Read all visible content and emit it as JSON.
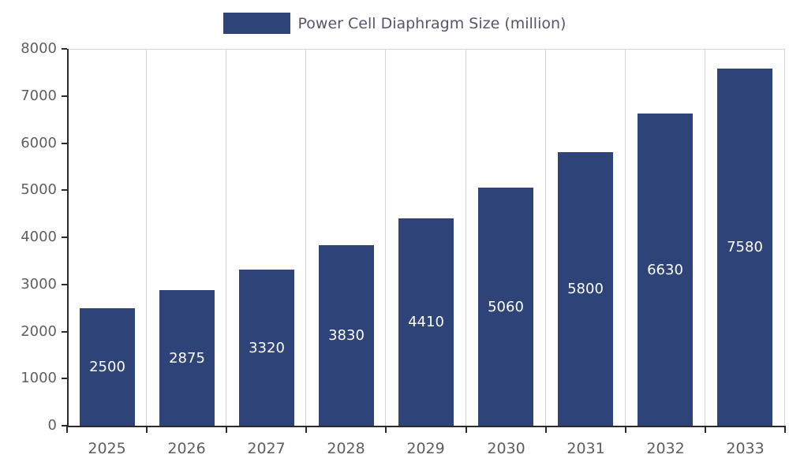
{
  "legend": {
    "label": "Power Cell Diaphragm Size (million)"
  },
  "chart_data": {
    "type": "bar",
    "title": "Power Cell Diaphragm Size (million)",
    "categories": [
      "2025",
      "2026",
      "2027",
      "2028",
      "2029",
      "2030",
      "2031",
      "2032",
      "2033"
    ],
    "values": [
      2500,
      2875,
      3320,
      3830,
      4410,
      5060,
      5800,
      6630,
      7580
    ],
    "series_name": "Power Cell Diaphragm Size (million)",
    "xlabel": "",
    "ylabel": "",
    "ylim": [
      0,
      8000
    ],
    "ytick_step": 1000,
    "ytick_labels": [
      "0",
      "1000",
      "2000",
      "3000",
      "4000",
      "5000",
      "6000",
      "7000",
      "8000"
    ],
    "legend_position": "top",
    "grid": "vertical",
    "bar_color": "#2e4377",
    "bar_label_color": "#ffffff",
    "axis_color": "#2b2b2b",
    "grid_color": "#d4d4d4",
    "tick_text_color": "#5f5f5f",
    "legend_text_color": "#55556d"
  }
}
